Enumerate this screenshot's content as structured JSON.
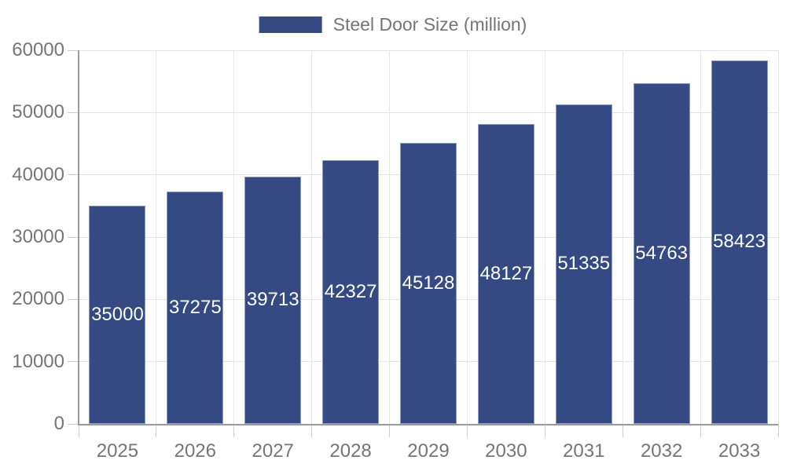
{
  "legend": {
    "label": "Steel Door Size (million)",
    "swatch_color": "#354a83"
  },
  "chart_data": {
    "type": "bar",
    "title": "",
    "xlabel": "",
    "ylabel": "",
    "categories": [
      "2025",
      "2026",
      "2027",
      "2028",
      "2029",
      "2030",
      "2031",
      "2032",
      "2033"
    ],
    "series": [
      {
        "name": "Steel Door Size (million)",
        "values": [
          35000,
          37275,
          39713,
          42327,
          45128,
          48127,
          51335,
          54763,
          58423
        ]
      }
    ],
    "ylim": [
      0,
      60000
    ],
    "yticks": [
      0,
      10000,
      20000,
      30000,
      40000,
      50000,
      60000
    ],
    "grid": true,
    "legend_position": "top",
    "bar_color": "#354a83",
    "bar_border_color": "#8d9dc6",
    "value_label_color": "#ffffff",
    "axis_label_color": "#757575",
    "gridline_color": "#e3e3e3",
    "axis_line_color": "#9a9a9a"
  }
}
